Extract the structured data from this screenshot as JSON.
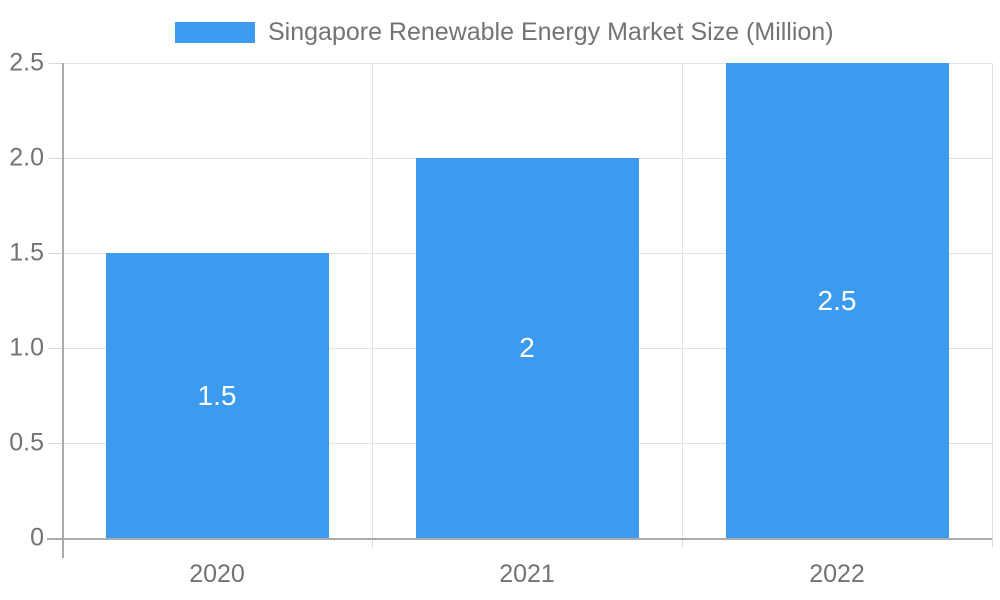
{
  "legend": {
    "label": "Singapore Renewable Energy Market Size (Million)"
  },
  "colors": {
    "bar": "#3C9BEE",
    "grid": "#E2E2E2",
    "tick": "#D9D9D9",
    "axis": "#ABABAB",
    "tick_text": "#737373",
    "data_label_text": "#FFFFFF",
    "background": "#FFFFFF"
  },
  "chart_data": {
    "type": "bar",
    "title": "Singapore Renewable Energy Market Size (Million)",
    "categories": [
      "2020",
      "2021",
      "2022"
    ],
    "series": [
      {
        "name": "Singapore Renewable Energy Market Size (Million)",
        "values": [
          1.5,
          2,
          2.5
        ],
        "data_labels": [
          "1.5",
          "2",
          "2.5"
        ]
      }
    ],
    "xlabel": "",
    "ylabel": "",
    "ylim": [
      0,
      2.5
    ],
    "y_ticks": [
      {
        "value": 0,
        "label": "0"
      },
      {
        "value": 0.5,
        "label": "0.5"
      },
      {
        "value": 1,
        "label": "1.0"
      },
      {
        "value": 1.5,
        "label": "1.5"
      },
      {
        "value": 2,
        "label": "2.0"
      },
      {
        "value": 2.5,
        "label": "2.5"
      }
    ],
    "grid": true,
    "legend_position": "top-center",
    "data_labels_position": "center"
  }
}
